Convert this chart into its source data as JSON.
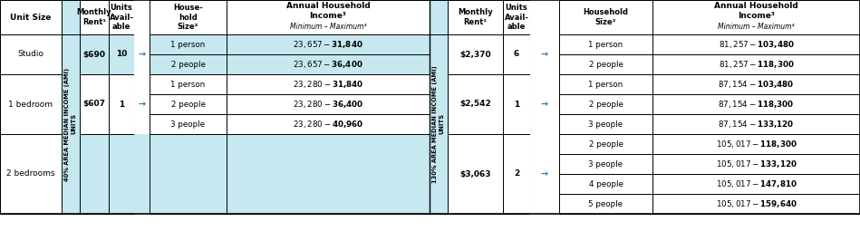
{
  "bg_color": "#ffffff",
  "light_blue": "#c6e8f0",
  "border_color": "#000000",
  "left_ami": "40% AREA MEDIAN INCOME (AMI)\nUNITS",
  "right_ami": "130% AREA MEDIAN INCOME (AMI)\nUNITS",
  "left_rows": [
    {
      "unit_size": "Studio",
      "monthly_rent": "$690",
      "units_avail": "10",
      "highlight": true,
      "sub_rows": [
        {
          "household_size": "1 person",
          "annual_income": "$23,657 - $31,840"
        },
        {
          "household_size": "2 people",
          "annual_income": "$23,657 - $36,400"
        }
      ]
    },
    {
      "unit_size": "1 bedroom",
      "monthly_rent": "$607",
      "units_avail": "1",
      "highlight": false,
      "sub_rows": [
        {
          "household_size": "1 person",
          "annual_income": "$23,280 - $31,840"
        },
        {
          "household_size": "2 people",
          "annual_income": "$23,280 - $36,400"
        },
        {
          "household_size": "3 people",
          "annual_income": "$23,280 - $40,960"
        }
      ]
    },
    {
      "unit_size": "2 bedrooms",
      "monthly_rent": "",
      "units_avail": "",
      "highlight": true,
      "sub_rows": []
    }
  ],
  "right_rows": [
    {
      "unit_size": "Studio",
      "monthly_rent": "$2,370",
      "units_avail": "6",
      "highlight": false,
      "sub_rows": [
        {
          "household_size": "1 person",
          "annual_income": "$81,257 - $103,480"
        },
        {
          "household_size": "2 people",
          "annual_income": "$81,257 - $118,300"
        }
      ]
    },
    {
      "unit_size": "1 bedroom",
      "monthly_rent": "$2,542",
      "units_avail": "1",
      "highlight": false,
      "sub_rows": [
        {
          "household_size": "1 person",
          "annual_income": "$87,154 - $103,480"
        },
        {
          "household_size": "2 people",
          "annual_income": "$87,154 - $118,300"
        },
        {
          "household_size": "3 people",
          "annual_income": "$87,154 - $133,120"
        }
      ]
    },
    {
      "unit_size": "2 bedrooms",
      "monthly_rent": "$3,063",
      "units_avail": "2",
      "highlight": false,
      "sub_rows": [
        {
          "household_size": "2 people",
          "annual_income": "$105,017 - $118,300"
        },
        {
          "household_size": "3 people",
          "annual_income": "$105,017 - $133,120"
        },
        {
          "household_size": "4 people",
          "annual_income": "$105,017 - $147,810"
        },
        {
          "household_size": "5 people",
          "annual_income": "$105,017 - $159,640"
        }
      ]
    }
  ]
}
